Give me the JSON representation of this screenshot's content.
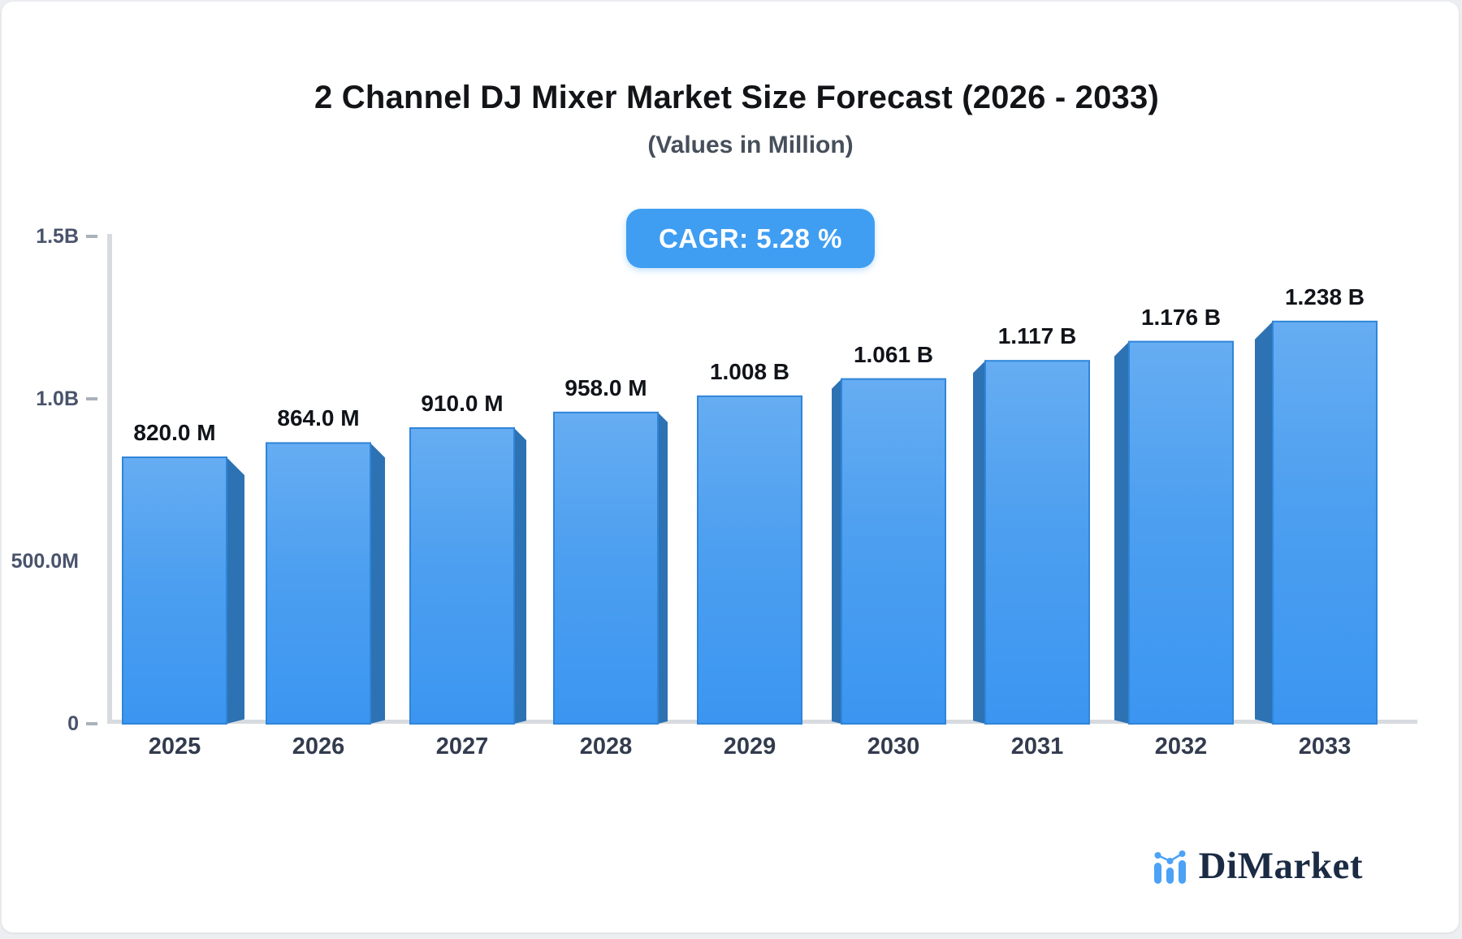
{
  "header": {
    "title": "2 Channel DJ Mixer Market Size Forecast (2026 - 2033)",
    "subtitle": "(Values in Million)",
    "cagr_label": "CAGR: 5.28 %"
  },
  "footer": {
    "brand": "DiMarket"
  },
  "chart_data": {
    "type": "bar",
    "title": "2 Channel DJ Mixer Market Size Forecast (2026 - 2033)",
    "subtitle": "(Values in Million)",
    "cagr_percent": 5.28,
    "categories": [
      "2025",
      "2026",
      "2027",
      "2028",
      "2029",
      "2030",
      "2031",
      "2032",
      "2033"
    ],
    "values_millions": [
      820,
      864,
      910,
      958,
      1008,
      1061,
      1117,
      1176,
      1238
    ],
    "bar_labels": [
      "820.0 M",
      "864.0 M",
      "910.0 M",
      "958.0 M",
      "1.008 B",
      "1.061 B",
      "1.117 B",
      "1.176 B",
      "1.238 B"
    ],
    "xlabel": "",
    "ylabel": "",
    "ylim_millions": [
      0,
      1500
    ],
    "y_ticks": [
      {
        "label": "1.5B",
        "value": 1500,
        "tick": true
      },
      {
        "label": "1.0B",
        "value": 1000,
        "tick": true
      },
      {
        "label": "500.0M",
        "value": 500,
        "tick": false
      },
      {
        "label": "0",
        "value": 0,
        "tick": true
      }
    ],
    "grid": false,
    "legend_position": "none",
    "colors": {
      "bar_face_top": "#66adf2",
      "bar_face_mid": "#4d9ff0",
      "bar_face_bottom": "#3b96f1",
      "bar_face_edge": "#2f85d9",
      "bar_side": "#2d72b3",
      "axis_line": "#d7dade",
      "tick": "#a9b1ba",
      "value_label": "#101318",
      "category_label": "#333c4e",
      "ytick_label": "#49536b",
      "badge_bg": "#3f9ef2",
      "badge_text": "#ffffff",
      "logo_blue": "#4ba2f6",
      "logo_navy": "#1b2b44"
    }
  }
}
